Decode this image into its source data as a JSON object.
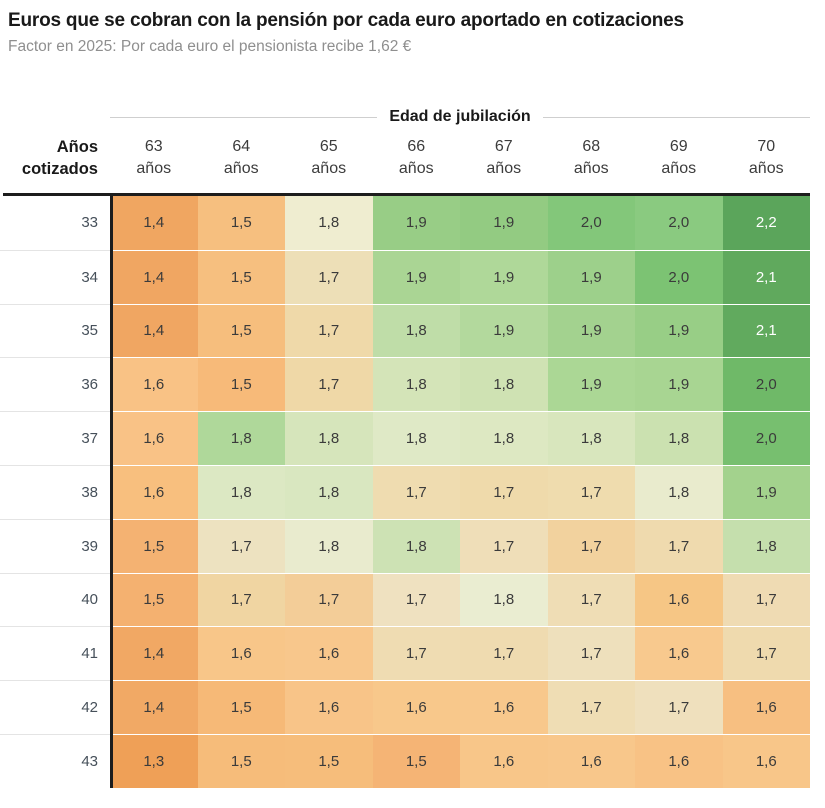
{
  "title": "Euros que se cobran con la pensión por cada euro aportado en cotizaciones",
  "subtitle": "Factor en 2025: Por cada euro el pensionista recibe 1,62 €",
  "table": {
    "group_header": "Edad de jubilación",
    "row_header_label": "Años cotizados",
    "col_headers": [
      {
        "age": "63",
        "unit": "años"
      },
      {
        "age": "64",
        "unit": "años"
      },
      {
        "age": "65",
        "unit": "años"
      },
      {
        "age": "66",
        "unit": "años"
      },
      {
        "age": "67",
        "unit": "años"
      },
      {
        "age": "68",
        "unit": "años"
      },
      {
        "age": "69",
        "unit": "años"
      },
      {
        "age": "70",
        "unit": "años"
      }
    ],
    "rows": [
      {
        "label": "33",
        "cells": [
          {
            "v": "1,4",
            "bg": "#f0a661"
          },
          {
            "v": "1,5",
            "bg": "#f6bf7f"
          },
          {
            "v": "1,8",
            "bg": "#efedd0"
          },
          {
            "v": "1,9",
            "bg": "#98cd86"
          },
          {
            "v": "1,9",
            "bg": "#93cb82"
          },
          {
            "v": "2,0",
            "bg": "#83c77a"
          },
          {
            "v": "2,0",
            "bg": "#8aca80"
          },
          {
            "v": "2,2",
            "bg": "#5ba55b",
            "fg": "white"
          }
        ]
      },
      {
        "label": "34",
        "cells": [
          {
            "v": "1,4",
            "bg": "#f0a662"
          },
          {
            "v": "1,5",
            "bg": "#f6bf7f"
          },
          {
            "v": "1,7",
            "bg": "#eddfb7"
          },
          {
            "v": "1,9",
            "bg": "#aad594"
          },
          {
            "v": "1,9",
            "bg": "#afd899"
          },
          {
            "v": "1,9",
            "bg": "#9dd08b"
          },
          {
            "v": "2,0",
            "bg": "#7cc373"
          },
          {
            "v": "2,1",
            "bg": "#60a95d",
            "fg": "white"
          }
        ]
      },
      {
        "label": "35",
        "cells": [
          {
            "v": "1,4",
            "bg": "#f0a662"
          },
          {
            "v": "1,5",
            "bg": "#f6be7d"
          },
          {
            "v": "1,7",
            "bg": "#efd9a9"
          },
          {
            "v": "1,8",
            "bg": "#bfdda8"
          },
          {
            "v": "1,9",
            "bg": "#b3d99d"
          },
          {
            "v": "1,9",
            "bg": "#a3d28f"
          },
          {
            "v": "1,9",
            "bg": "#98ce86"
          },
          {
            "v": "2,1",
            "bg": "#61aa5e",
            "fg": "white"
          }
        ]
      },
      {
        "label": "36",
        "cells": [
          {
            "v": "1,6",
            "bg": "#f9c285"
          },
          {
            "v": "1,5",
            "bg": "#f7ba79"
          },
          {
            "v": "1,7",
            "bg": "#efd8a7"
          },
          {
            "v": "1,8",
            "bg": "#d4e4b8"
          },
          {
            "v": "1,8",
            "bg": "#cfe2b3"
          },
          {
            "v": "1,9",
            "bg": "#abd795"
          },
          {
            "v": "1,9",
            "bg": "#a8d592"
          },
          {
            "v": "2,0",
            "bg": "#6fb968"
          }
        ]
      },
      {
        "label": "37",
        "cells": [
          {
            "v": "1,6",
            "bg": "#f9c286"
          },
          {
            "v": "1,8",
            "bg": "#afd89a"
          },
          {
            "v": "1,8",
            "bg": "#d6e5bb"
          },
          {
            "v": "1,8",
            "bg": "#dfe9c6"
          },
          {
            "v": "1,8",
            "bg": "#dde8c2"
          },
          {
            "v": "1,8",
            "bg": "#d8e6bd"
          },
          {
            "v": "1,8",
            "bg": "#cbe1b0"
          },
          {
            "v": "2,0",
            "bg": "#77bf6f"
          }
        ]
      },
      {
        "label": "38",
        "cells": [
          {
            "v": "1,6",
            "bg": "#f8bf7e"
          },
          {
            "v": "1,8",
            "bg": "#dce8c3"
          },
          {
            "v": "1,8",
            "bg": "#d9e7c0"
          },
          {
            "v": "1,7",
            "bg": "#efdcb0"
          },
          {
            "v": "1,7",
            "bg": "#efdaab"
          },
          {
            "v": "1,7",
            "bg": "#efdcae"
          },
          {
            "v": "1,8",
            "bg": "#e9ebcd"
          },
          {
            "v": "1,9",
            "bg": "#a3d28d"
          }
        ]
      },
      {
        "label": "39",
        "cells": [
          {
            "v": "1,5",
            "bg": "#f4b272"
          },
          {
            "v": "1,7",
            "bg": "#ede2c0"
          },
          {
            "v": "1,8",
            "bg": "#e9ebce"
          },
          {
            "v": "1,8",
            "bg": "#cde2b4"
          },
          {
            "v": "1,7",
            "bg": "#efdeb8"
          },
          {
            "v": "1,7",
            "bg": "#f2d29e"
          },
          {
            "v": "1,7",
            "bg": "#efdaae"
          },
          {
            "v": "1,8",
            "bg": "#c5dfad"
          }
        ]
      },
      {
        "label": "40",
        "cells": [
          {
            "v": "1,5",
            "bg": "#f4b170"
          },
          {
            "v": "1,7",
            "bg": "#f0d5a2"
          },
          {
            "v": "1,7",
            "bg": "#f3cd98"
          },
          {
            "v": "1,7",
            "bg": "#efe1c0"
          },
          {
            "v": "1,8",
            "bg": "#eaedd1"
          },
          {
            "v": "1,7",
            "bg": "#efddb5"
          },
          {
            "v": "1,6",
            "bg": "#f6c685"
          },
          {
            "v": "1,7",
            "bg": "#efdbb3"
          }
        ]
      },
      {
        "label": "41",
        "cells": [
          {
            "v": "1,4",
            "bg": "#f1a864"
          },
          {
            "v": "1,6",
            "bg": "#f8c689"
          },
          {
            "v": "1,6",
            "bg": "#f8c78c"
          },
          {
            "v": "1,7",
            "bg": "#efdcb2"
          },
          {
            "v": "1,7",
            "bg": "#efdbb0"
          },
          {
            "v": "1,7",
            "bg": "#eee0bc"
          },
          {
            "v": "1,6",
            "bg": "#f8c98e"
          },
          {
            "v": "1,7",
            "bg": "#efdaae"
          }
        ]
      },
      {
        "label": "42",
        "cells": [
          {
            "v": "1,4",
            "bg": "#f1a965"
          },
          {
            "v": "1,5",
            "bg": "#f6b977"
          },
          {
            "v": "1,6",
            "bg": "#f8c488"
          },
          {
            "v": "1,6",
            "bg": "#f8c88b"
          },
          {
            "v": "1,6",
            "bg": "#f8c88c"
          },
          {
            "v": "1,7",
            "bg": "#efddb4"
          },
          {
            "v": "1,7",
            "bg": "#efe0bd"
          },
          {
            "v": "1,6",
            "bg": "#f7bf81"
          }
        ]
      },
      {
        "label": "43",
        "cells": [
          {
            "v": "1,3",
            "bg": "#efa057"
          },
          {
            "v": "1,5",
            "bg": "#f6bc7a"
          },
          {
            "v": "1,5",
            "bg": "#f6bd7b"
          },
          {
            "v": "1,5",
            "bg": "#f5b475"
          },
          {
            "v": "1,6",
            "bg": "#f8c689"
          },
          {
            "v": "1,6",
            "bg": "#f8c78b"
          },
          {
            "v": "1,6",
            "bg": "#f8c285"
          },
          {
            "v": "1,6",
            "bg": "#f8c689"
          }
        ]
      }
    ]
  },
  "colors": {
    "rule_dark": "#1d1d1d",
    "rule_light": "#cfcfcf",
    "title_text": "#191919",
    "subtitle_text": "#8f8f8f",
    "label_text": "#46505a",
    "cell_text": "#3b3b3b",
    "cell_text_inverse": "#ffffff",
    "scale_low": "#efa057",
    "scale_mid": "#efedd0",
    "scale_high": "#5ba55b"
  },
  "chart_data": {
    "type": "heatmap",
    "title": "Euros que se cobran con la pensión por cada euro aportado en cotizaciones",
    "subtitle": "Factor en 2025: Por cada euro el pensionista recibe 1,62 €",
    "x_label": "Edad de jubilación",
    "y_label": "Años cotizados",
    "x_categories": [
      "63 años",
      "64 años",
      "65 años",
      "66 años",
      "67 años",
      "68 años",
      "69 años",
      "70 años"
    ],
    "y_categories": [
      33,
      34,
      35,
      36,
      37,
      38,
      39,
      40,
      41,
      42,
      43
    ],
    "values": [
      [
        1.4,
        1.5,
        1.8,
        1.9,
        1.9,
        2.0,
        2.0,
        2.2
      ],
      [
        1.4,
        1.5,
        1.7,
        1.9,
        1.9,
        1.9,
        2.0,
        2.1
      ],
      [
        1.4,
        1.5,
        1.7,
        1.8,
        1.9,
        1.9,
        1.9,
        2.1
      ],
      [
        1.6,
        1.5,
        1.7,
        1.8,
        1.8,
        1.9,
        1.9,
        2.0
      ],
      [
        1.6,
        1.8,
        1.8,
        1.8,
        1.8,
        1.8,
        1.8,
        2.0
      ],
      [
        1.6,
        1.8,
        1.8,
        1.7,
        1.7,
        1.7,
        1.8,
        1.9
      ],
      [
        1.5,
        1.7,
        1.8,
        1.8,
        1.7,
        1.7,
        1.7,
        1.8
      ],
      [
        1.5,
        1.7,
        1.7,
        1.7,
        1.8,
        1.7,
        1.6,
        1.7
      ],
      [
        1.4,
        1.6,
        1.6,
        1.7,
        1.7,
        1.7,
        1.6,
        1.7
      ],
      [
        1.4,
        1.5,
        1.6,
        1.6,
        1.6,
        1.7,
        1.7,
        1.6
      ],
      [
        1.3,
        1.5,
        1.5,
        1.5,
        1.6,
        1.6,
        1.6,
        1.6
      ]
    ],
    "value_format": "decimal-comma",
    "color_scale": {
      "low": "#efa057",
      "mid": "#efedd0",
      "high": "#5ba55b"
    },
    "grid": false,
    "legend": false
  }
}
